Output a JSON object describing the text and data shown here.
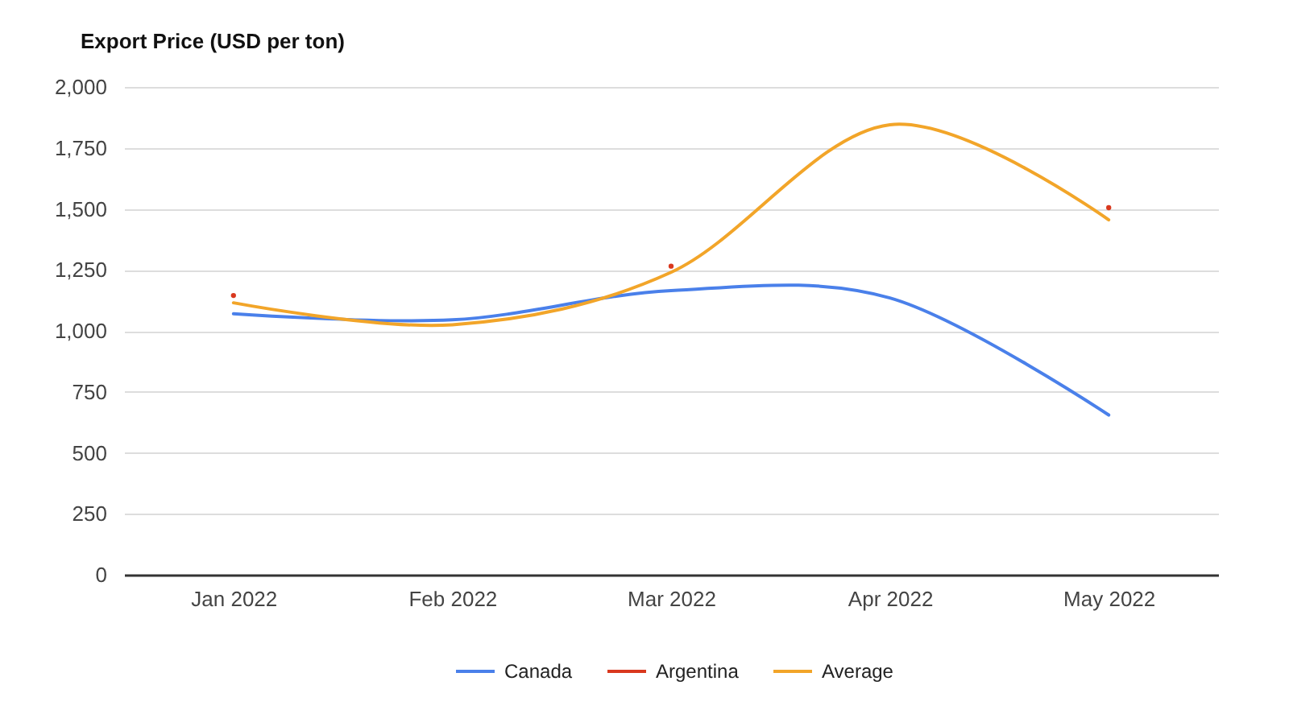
{
  "chart_data": {
    "type": "line",
    "title": "Export Price (USD per ton)",
    "categories": [
      "Jan 2022",
      "Feb 2022",
      "Mar 2022",
      "Apr 2022",
      "May 2022"
    ],
    "series": [
      {
        "name": "Canada",
        "color": "#4a80ea",
        "values": [
          1070,
          1045,
          1165,
          1135,
          655
        ]
      },
      {
        "name": "Argentina",
        "type": "scatter",
        "color": "#d9381e",
        "values": [
          1145,
          null,
          1265,
          null,
          1505
        ],
        "marker": "circle"
      },
      {
        "name": "Average",
        "color": "#f2a529",
        "values": [
          1115,
          1025,
          1240,
          1845,
          1455
        ]
      }
    ],
    "ylim": [
      0,
      2000
    ],
    "yticks": [
      0,
      250,
      500,
      750,
      {
        "value": 1000,
        "label": "1,000"
      },
      {
        "value": 1250,
        "label": "1,250"
      },
      {
        "value": 1500,
        "label": "1,500"
      },
      {
        "value": 1750,
        "label": "1,750"
      },
      {
        "value": 2000,
        "label": "2,000"
      }
    ],
    "grid": "y",
    "legend": "bottom"
  }
}
